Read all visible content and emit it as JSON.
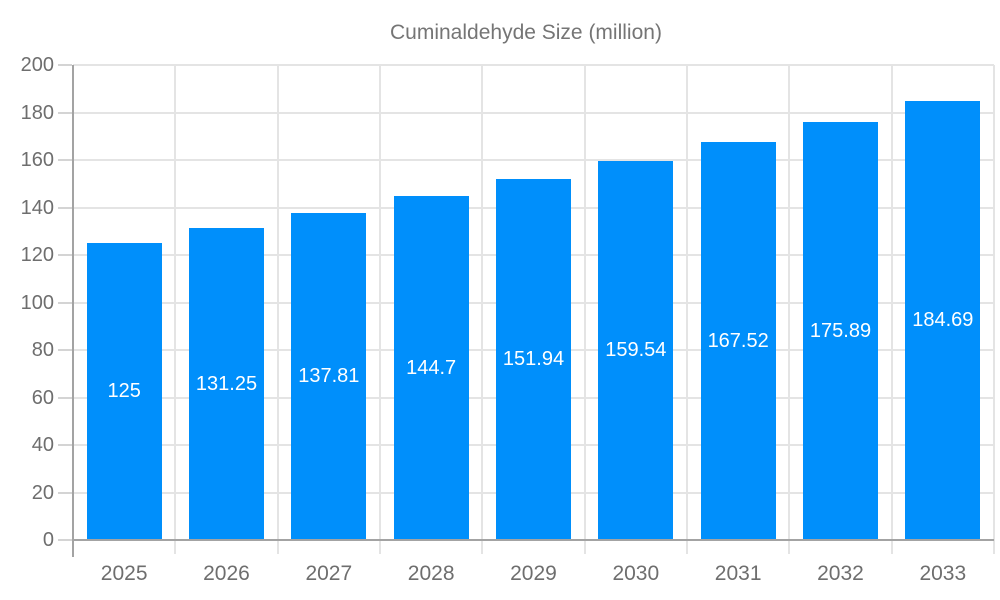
{
  "chart_data": {
    "type": "bar",
    "legend_label": "Cuminaldehyde Size (million)",
    "legend_position": "top",
    "categories": [
      "2025",
      "2026",
      "2027",
      "2028",
      "2029",
      "2030",
      "2031",
      "2032",
      "2033"
    ],
    "series": [
      {
        "name": "Cuminaldehyde Size (million)",
        "values": [
          125,
          131.25,
          137.81,
          144.7,
          151.94,
          159.54,
          167.52,
          175.89,
          184.69
        ]
      }
    ],
    "bar_labels": [
      "125",
      "131.25",
      "137.81",
      "144.7",
      "151.94",
      "159.54",
      "167.52",
      "175.89",
      "184.69"
    ],
    "xlabel": "",
    "ylabel": "",
    "ylim": [
      0,
      200
    ],
    "yticks": [
      0,
      20,
      40,
      60,
      80,
      100,
      120,
      140,
      160,
      180,
      200
    ],
    "grid": true,
    "colors": {
      "bar": "#008FFB",
      "grid": "#e4e4e4",
      "tick": "#d4d4d4",
      "axis": "#a3a3a3",
      "axis_label": "#6e6e6e",
      "legend_text": "#757575",
      "data_label": "#ffffff",
      "background": "#ffffff"
    }
  }
}
